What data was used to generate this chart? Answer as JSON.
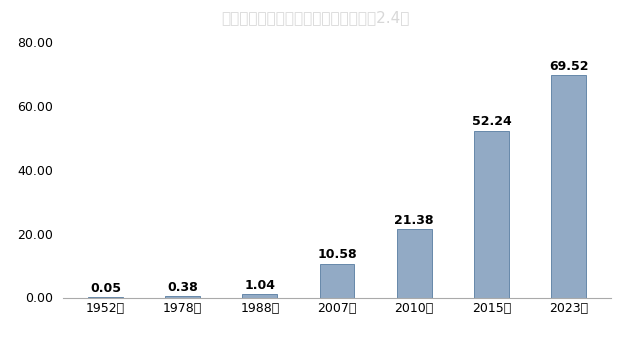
{
  "categories": [
    "1952年",
    "1978年",
    "1988年",
    "2007年",
    "2010年",
    "2015年",
    "2023年"
  ],
  "values": [
    0.05,
    0.38,
    1.04,
    10.58,
    21.38,
    52.24,
    69.52
  ],
  "bar_color": "#92aac5",
  "bar_edge_color": "#6688aa",
  "title": "教育部：我國接受低等教育的生齒抵達2.4億",
  "title_color": "#d8d8d8",
  "title_fontsize": 11,
  "ylim": [
    0,
    80
  ],
  "yticks": [
    0.0,
    20.0,
    40.0,
    60.0,
    80.0
  ],
  "tick_fontsize": 9,
  "value_fontsize": 9,
  "background_color": "#ffffff"
}
